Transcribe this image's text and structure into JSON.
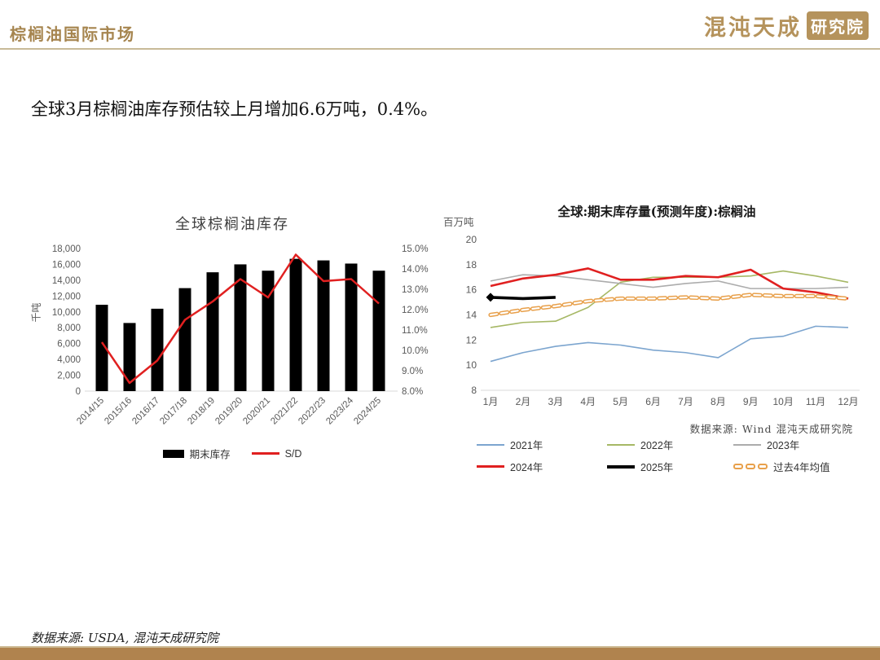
{
  "header": {
    "title": "棕榈油国际市场",
    "logo_text": "混沌天成",
    "logo_badge": "研究院"
  },
  "summary": "全球3月棕榈油库存预估较上月增加6.6万吨，0.4%。",
  "footer": {
    "source": "数据来源: USDA, 混沌天成研究院"
  },
  "colors": {
    "accent_gold": "#B0834E",
    "header_title_gold": "#A6854F",
    "axis_text": "#595959",
    "baseline": "#D9D9D9"
  },
  "chart_data": [
    {
      "type": "bar",
      "title": "全球棕榈油库存",
      "ylabel": "千吨",
      "categories": [
        "2014/15",
        "2015/16",
        "2016/17",
        "2017/18",
        "2018/19",
        "2019/20",
        "2020/21",
        "2021/22",
        "2022/23",
        "2023/24",
        "2024/25"
      ],
      "left_axis": {
        "min": 0,
        "max": 18000,
        "step": 2000
      },
      "right_axis": {
        "min": 8.0,
        "max": 15.0,
        "step": 1.0,
        "format": "percent"
      },
      "grid": false,
      "legend_position": "bottom",
      "series": [
        {
          "name": "期末库存",
          "kind": "bar",
          "axis": "left",
          "color": "#000000",
          "values": [
            10900,
            8600,
            10400,
            13000,
            15000,
            16000,
            15200,
            16700,
            16500,
            16100,
            15200
          ]
        },
        {
          "name": "S/D",
          "kind": "line",
          "axis": "right",
          "color": "#E02020",
          "width": 2.5,
          "values": [
            10.4,
            8.4,
            9.5,
            11.5,
            12.4,
            13.5,
            12.6,
            14.7,
            13.4,
            13.5,
            12.3
          ]
        }
      ]
    },
    {
      "type": "line",
      "title": "全球:期末库存量(预测年度):棕榈油",
      "ylabel": "百万吨",
      "source": "数据来源: Wind  混沌天成研究院",
      "x": [
        "1月",
        "2月",
        "3月",
        "4月",
        "5月",
        "6月",
        "7月",
        "8月",
        "9月",
        "10月",
        "11月",
        "12月"
      ],
      "ylim": [
        8,
        20
      ],
      "ystep": 2,
      "grid": false,
      "legend_position": "bottom",
      "series": [
        {
          "name": "2021年",
          "color": "#7CA5CF",
          "width": 1.6,
          "values": [
            10.3,
            11.0,
            11.5,
            11.8,
            11.6,
            11.2,
            11.0,
            10.6,
            12.1,
            12.3,
            13.1,
            13.0
          ]
        },
        {
          "name": "2022年",
          "color": "#A6B865",
          "width": 1.6,
          "values": [
            13.0,
            13.4,
            13.5,
            14.6,
            16.6,
            17.0,
            17.0,
            17.0,
            17.1,
            17.5,
            17.1,
            16.6
          ]
        },
        {
          "name": "2023年",
          "color": "#ACACAC",
          "width": 1.6,
          "values": [
            16.7,
            17.2,
            17.1,
            16.8,
            16.5,
            16.2,
            16.5,
            16.7,
            16.1,
            16.1,
            16.1,
            16.2
          ]
        },
        {
          "name": "2024年",
          "color": "#E02020",
          "width": 2.6,
          "values": [
            16.3,
            16.9,
            17.2,
            17.7,
            16.8,
            16.8,
            17.1,
            17.0,
            17.6,
            16.1,
            15.8,
            15.3
          ]
        },
        {
          "name": "2025年",
          "color": "#000000",
          "width": 3.6,
          "marker": "diamond",
          "values": [
            15.4,
            15.3,
            15.4,
            null,
            null,
            null,
            null,
            null,
            null,
            null,
            null,
            null
          ]
        },
        {
          "name": "过去4年均值",
          "color": "#E8A04B",
          "width": 2.4,
          "dash": true,
          "values": [
            14.0,
            14.4,
            14.7,
            15.1,
            15.3,
            15.3,
            15.4,
            15.3,
            15.6,
            15.5,
            15.5,
            15.3
          ]
        }
      ]
    }
  ]
}
